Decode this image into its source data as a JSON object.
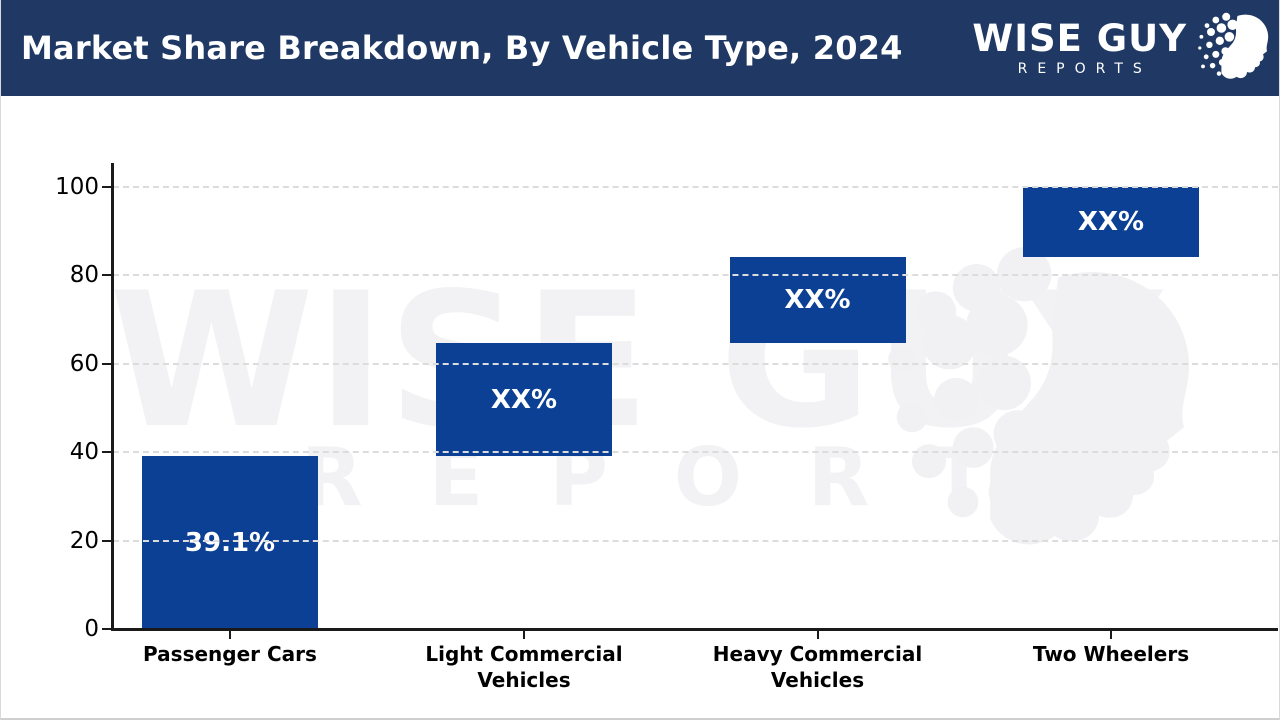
{
  "header": {
    "title": "Market Share Breakdown, By Vehicle Type, 2024",
    "background_color": "#1f3864",
    "text_color": "#ffffff",
    "logo": {
      "wordmark": "WISE GUY",
      "subtext": "REPORTS"
    }
  },
  "watermark": {
    "wordmark": "WISE GUY",
    "subtext": "REPORTS"
  },
  "chart_data": {
    "type": "bar",
    "subtype": "floating-waterfall",
    "title": "Market Share Breakdown, By Vehicle Type, 2024",
    "xlabel": "",
    "ylabel": "",
    "ylim": [
      0,
      105
    ],
    "yticks": [
      0,
      20,
      40,
      60,
      80,
      100
    ],
    "grid": "horizontal-dashed",
    "legend": "none",
    "bar_color": "#0c4094",
    "bar_label_color": "#ffffff",
    "categories": [
      "Passenger Cars",
      "Light Commercial Vehicles",
      "Heavy Commercial Vehicles",
      "Two Wheelers"
    ],
    "segments": [
      {
        "category": "Passenger Cars",
        "start": 0,
        "end": 39.1,
        "label": "39.1%"
      },
      {
        "category": "Light Commercial Vehicles",
        "start": 39.1,
        "end": 64.7,
        "label": "XX%"
      },
      {
        "category": "Heavy Commercial Vehicles",
        "start": 64.7,
        "end": 84.1,
        "label": "XX%"
      },
      {
        "category": "Two Wheelers",
        "start": 84.1,
        "end": 100,
        "label": "XX%"
      }
    ]
  }
}
